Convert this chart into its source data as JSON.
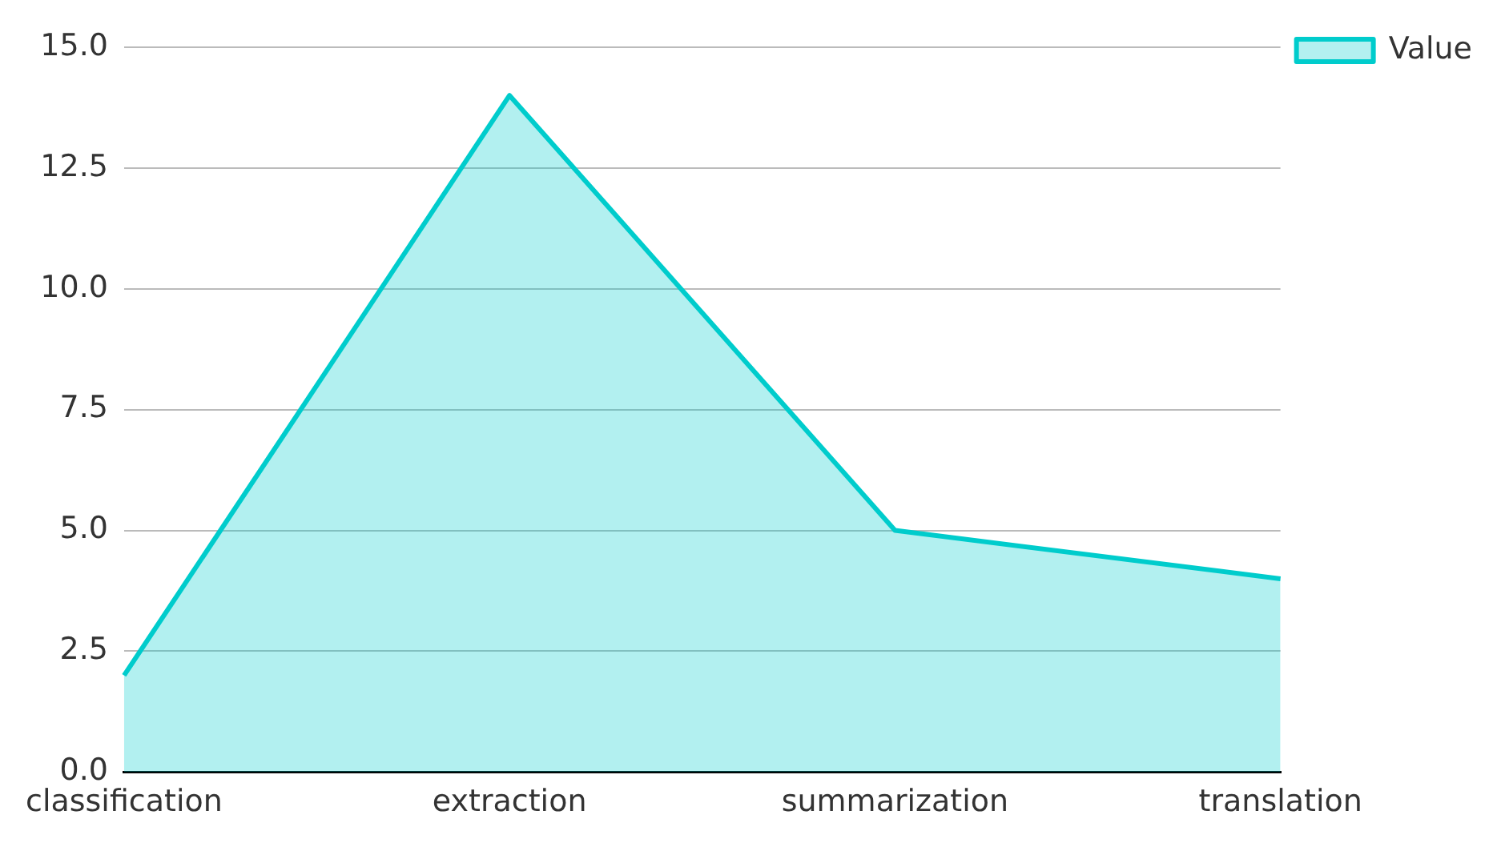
{
  "chart_data": {
    "type": "area",
    "categories": [
      "classification",
      "extraction",
      "summarization",
      "translation"
    ],
    "series": [
      {
        "name": "Value",
        "color": "#00cccc",
        "values": [
          2,
          14,
          5,
          4
        ]
      }
    ],
    "ylim": [
      0,
      15
    ],
    "yticks": [
      {
        "value": 0,
        "label": "0.0"
      },
      {
        "value": 2.5,
        "label": "2.5"
      },
      {
        "value": 5,
        "label": "5.0"
      },
      {
        "value": 7.5,
        "label": "7.5"
      },
      {
        "value": 10,
        "label": "10.0"
      },
      {
        "value": 12.5,
        "label": "12.5"
      },
      {
        "value": 15,
        "label": "15.0"
      }
    ],
    "grid": "y",
    "legend": "top right",
    "marker": "none",
    "line_style": "solid"
  }
}
